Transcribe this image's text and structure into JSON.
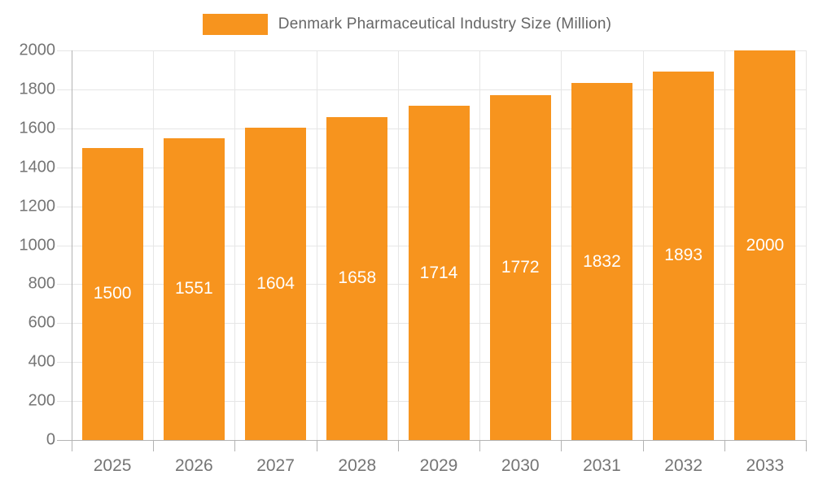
{
  "legend": {
    "label": "Denmark Pharmaceutical Industry Size (Million)",
    "swatch_color": "#F7941E"
  },
  "chart_data": {
    "type": "bar",
    "title": "Denmark Pharmaceutical Industry Size (Million)",
    "categories": [
      "2025",
      "2026",
      "2027",
      "2028",
      "2029",
      "2030",
      "2031",
      "2032",
      "2033"
    ],
    "values": [
      1500,
      1551,
      1604,
      1658,
      1714,
      1772,
      1832,
      1893,
      2000
    ],
    "xlabel": "",
    "ylabel": "",
    "ylim": [
      0,
      2000
    ],
    "ytick_step": 200,
    "ytick_labels": [
      "0",
      "200",
      "400",
      "600",
      "800",
      "1000",
      "1200",
      "1400",
      "1600",
      "1800",
      "2000"
    ],
    "grid": true,
    "legend_position": "top",
    "bar_color": "#F7941E",
    "value_label_color": "#ffffff",
    "axis_color": "#B3B3B3",
    "grid_color": "#E6E6E6",
    "tick_label_color": "#757575"
  }
}
